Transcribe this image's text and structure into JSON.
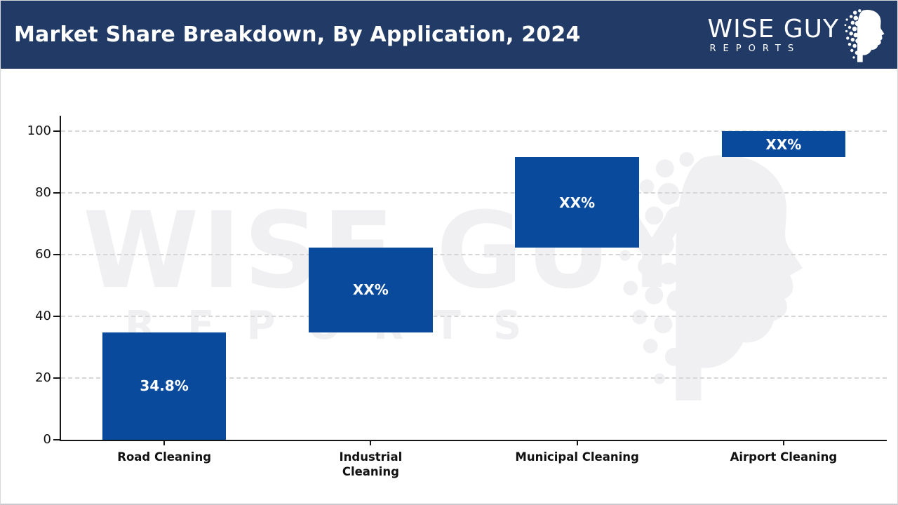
{
  "header": {
    "title": "Market Share Breakdown, By Application, 2024",
    "background": "#213a66",
    "logo": {
      "line1": "WISE GUY",
      "line2": "REPORTS"
    }
  },
  "watermark": {
    "line1": "WISE GUY",
    "line2": "REPORTS"
  },
  "chart_data": {
    "type": "bar",
    "subtype": "waterfall",
    "title": "Market Share Breakdown, By Application, 2024",
    "categories": [
      "Road Cleaning",
      "Industrial Cleaning",
      "Municipal Cleaning",
      "Airport Cleaning"
    ],
    "category_lines": [
      [
        "Road Cleaning"
      ],
      [
        "Industrial",
        "Cleaning"
      ],
      [
        "Municipal Cleaning"
      ],
      [
        "Airport Cleaning"
      ]
    ],
    "bars": [
      {
        "category": "Road Cleaning",
        "start": 0,
        "end": 34.8,
        "label": "34.8%"
      },
      {
        "category": "Industrial Cleaning",
        "start": 34.8,
        "end": 62.3,
        "label": "XX%"
      },
      {
        "category": "Municipal Cleaning",
        "start": 62.3,
        "end": 91.5,
        "label": "XX%"
      },
      {
        "category": "Airport Cleaning",
        "start": 91.5,
        "end": 100,
        "label": "XX%"
      }
    ],
    "y_ticks": [
      0,
      20,
      40,
      60,
      80,
      100
    ],
    "ylim": [
      0,
      105
    ],
    "xlabel": "",
    "ylabel": "",
    "grid": "horizontal-dashed",
    "legend": "none",
    "bar_color": "#0a4a9c",
    "bar_label_color": "#ffffff",
    "axis_color": "#161616"
  }
}
